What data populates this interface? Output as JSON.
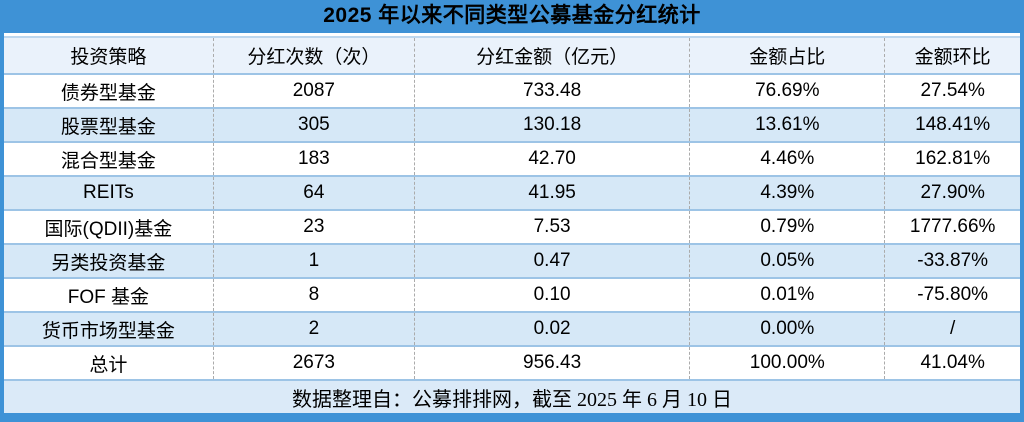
{
  "title": "2025 年以来不同类型公募基金分红统计",
  "table": {
    "columns": [
      "投资策略",
      "分红次数（次）",
      "分红金额（亿元）",
      "金额占比",
      "金额环比"
    ],
    "rows": [
      [
        "债券型基金",
        "2087",
        "733.48",
        "76.69%",
        "27.54%"
      ],
      [
        "股票型基金",
        "305",
        "130.18",
        "13.61%",
        "148.41%"
      ],
      [
        "混合型基金",
        "183",
        "42.70",
        "4.46%",
        "162.81%"
      ],
      [
        "REITs",
        "64",
        "41.95",
        "4.39%",
        "27.90%"
      ],
      [
        "国际(QDII)基金",
        "23",
        "7.53",
        "0.79%",
        "1777.66%"
      ],
      [
        "另类投资基金",
        "1",
        "0.47",
        "0.05%",
        "-33.87%"
      ],
      [
        "FOF 基金",
        "8",
        "0.10",
        "0.01%",
        "-75.80%"
      ],
      [
        "货币市场型基金",
        "2",
        "0.02",
        "0.00%",
        "/"
      ],
      [
        "总计",
        "2673",
        "956.43",
        "100.00%",
        "41.04%"
      ]
    ],
    "footer": "数据整理自：公募排排网，截至 2025 年 6 月 10 日"
  },
  "colors": {
    "accent_blue": "#3E92D6",
    "header_bg": "#EAF2FB",
    "row_alt_bg": "#D6E8F7",
    "footer_bg": "#DBEAF8",
    "row_line": "#9DC4E6",
    "column_dash": "#ABABAB"
  },
  "chart_data": {
    "type": "table",
    "title": "2025 年以来不同类型公募基金分红统计",
    "columns": [
      "投资策略",
      "分红次数（次）",
      "分红金额（亿元）",
      "金额占比",
      "金额环比"
    ],
    "rows": [
      {
        "strategy": "债券型基金",
        "dividend_count": 2087,
        "dividend_amount_yi": 733.48,
        "amount_share": "76.69%",
        "amount_mom": "27.54%"
      },
      {
        "strategy": "股票型基金",
        "dividend_count": 305,
        "dividend_amount_yi": 130.18,
        "amount_share": "13.61%",
        "amount_mom": "148.41%"
      },
      {
        "strategy": "混合型基金",
        "dividend_count": 183,
        "dividend_amount_yi": 42.7,
        "amount_share": "4.46%",
        "amount_mom": "162.81%"
      },
      {
        "strategy": "REITs",
        "dividend_count": 64,
        "dividend_amount_yi": 41.95,
        "amount_share": "4.39%",
        "amount_mom": "27.90%"
      },
      {
        "strategy": "国际(QDII)基金",
        "dividend_count": 23,
        "dividend_amount_yi": 7.53,
        "amount_share": "0.79%",
        "amount_mom": "1777.66%"
      },
      {
        "strategy": "另类投资基金",
        "dividend_count": 1,
        "dividend_amount_yi": 0.47,
        "amount_share": "0.05%",
        "amount_mom": "-33.87%"
      },
      {
        "strategy": "FOF 基金",
        "dividend_count": 8,
        "dividend_amount_yi": 0.1,
        "amount_share": "0.01%",
        "amount_mom": "-75.80%"
      },
      {
        "strategy": "货币市场型基金",
        "dividend_count": 2,
        "dividend_amount_yi": 0.02,
        "amount_share": "0.00%",
        "amount_mom": "/"
      },
      {
        "strategy": "总计",
        "dividend_count": 2673,
        "dividend_amount_yi": 956.43,
        "amount_share": "100.00%",
        "amount_mom": "41.04%"
      }
    ],
    "source_note": "数据整理自：公募排排网，截至 2025 年 6 月 10 日"
  }
}
